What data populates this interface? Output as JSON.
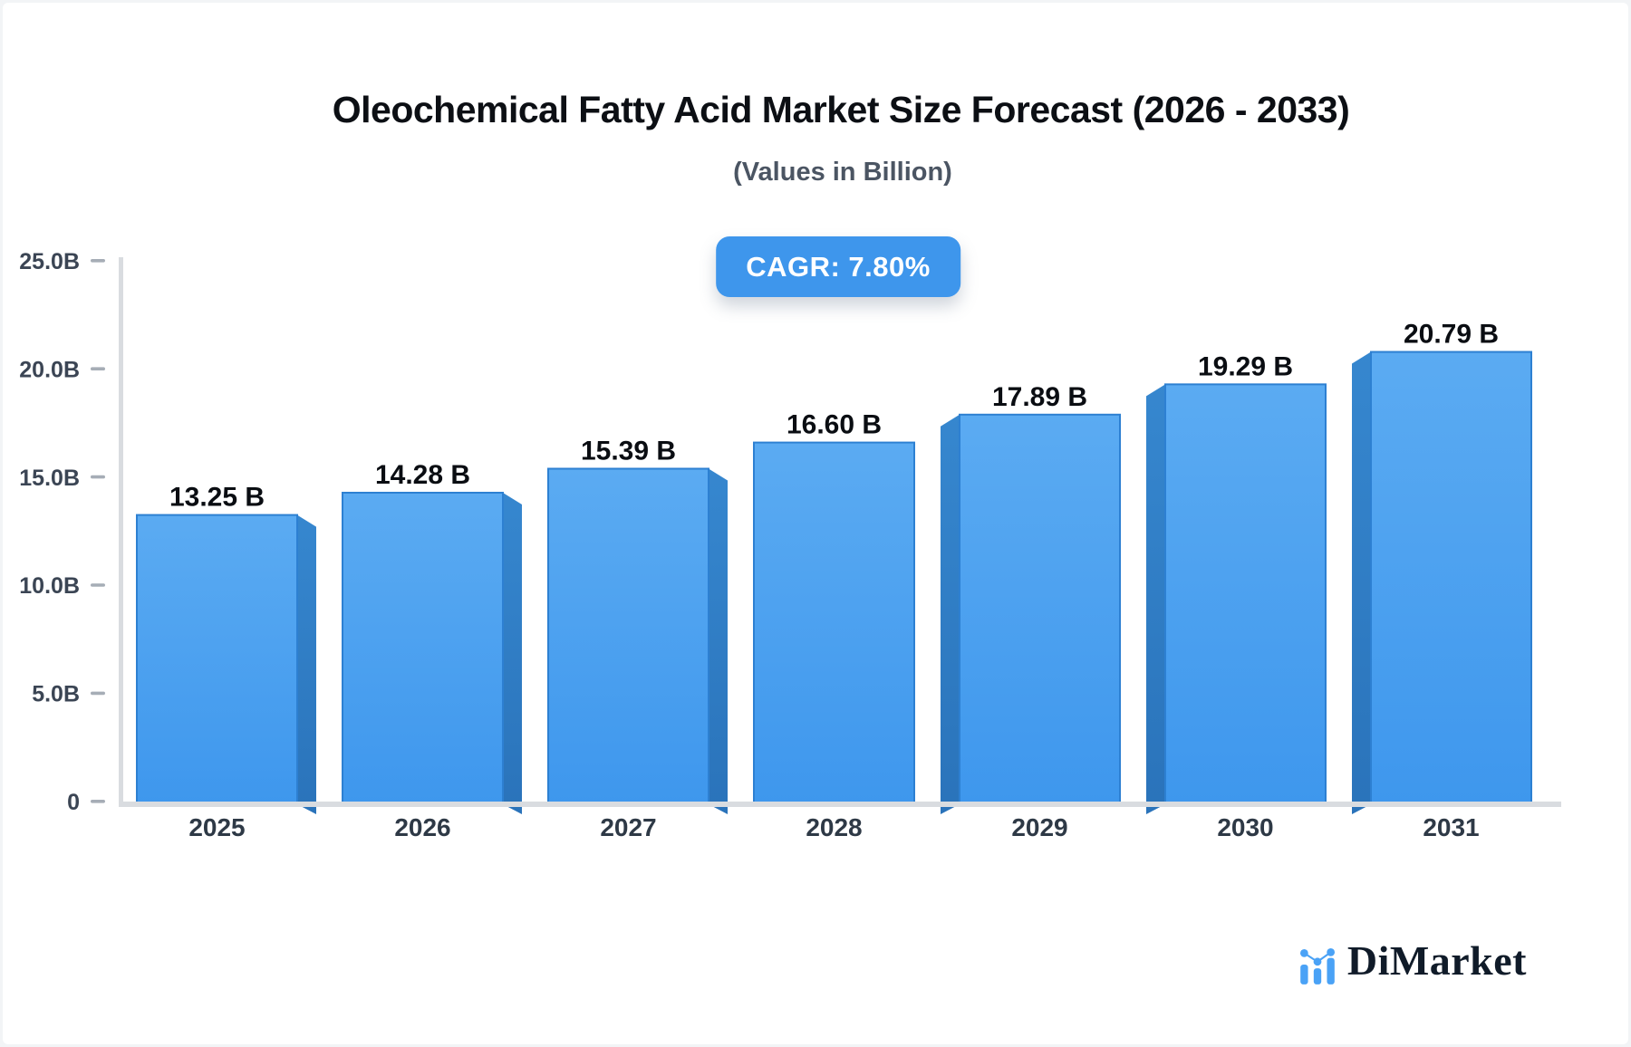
{
  "page": {
    "background": "#f2f4f6",
    "card_background": "#ffffff"
  },
  "header": {
    "title": "Oleochemical Fatty Acid Market Size Forecast (2026 - 2033)",
    "subtitle": "(Values in Billion)"
  },
  "badge": {
    "label": "CAGR: 7.80%",
    "background": "#3e96ec",
    "text_color": "#ffffff"
  },
  "chart_data": {
    "type": "bar",
    "categories": [
      "2025",
      "2026",
      "2027",
      "2028",
      "2029",
      "2030",
      "2031"
    ],
    "values": [
      13.25,
      14.28,
      15.39,
      16.6,
      17.89,
      19.29,
      20.79
    ],
    "value_labels": [
      "13.25 B",
      "14.28 B",
      "15.39 B",
      "16.60 B",
      "17.89 B",
      "19.29 B",
      "20.79 B"
    ],
    "title": "Oleochemical Fatty Acid Market Size Forecast (2026 - 2033)",
    "xlabel": "",
    "ylabel": "",
    "ylim": [
      0,
      25
    ],
    "y_tick_values": [
      25,
      20,
      15,
      10,
      5,
      0
    ],
    "y_tick_labels": [
      "25.0B",
      "20.0B",
      "15.0B",
      "10.0B",
      "5.0B",
      "0"
    ],
    "grid": false,
    "legend": null,
    "style": "3d-bars",
    "colors": {
      "bar_face_top": "#5babf2",
      "bar_face_bottom": "#3e97ed",
      "bar_face_stroke": "#2d80d2",
      "bar_side_top": "#3687cf",
      "bar_side_bottom": "#2a73ba",
      "axis_line": "#d9dce0",
      "tick_dash": "#a6adb6",
      "y_label": "#3b4554",
      "x_label": "#2e3946",
      "value_label": "#0a0d12"
    }
  },
  "logo": {
    "text": "DiMarket",
    "icon": "bar-chart-with-dots",
    "text_color": "#101b29",
    "accent": "#4aa2f6"
  }
}
